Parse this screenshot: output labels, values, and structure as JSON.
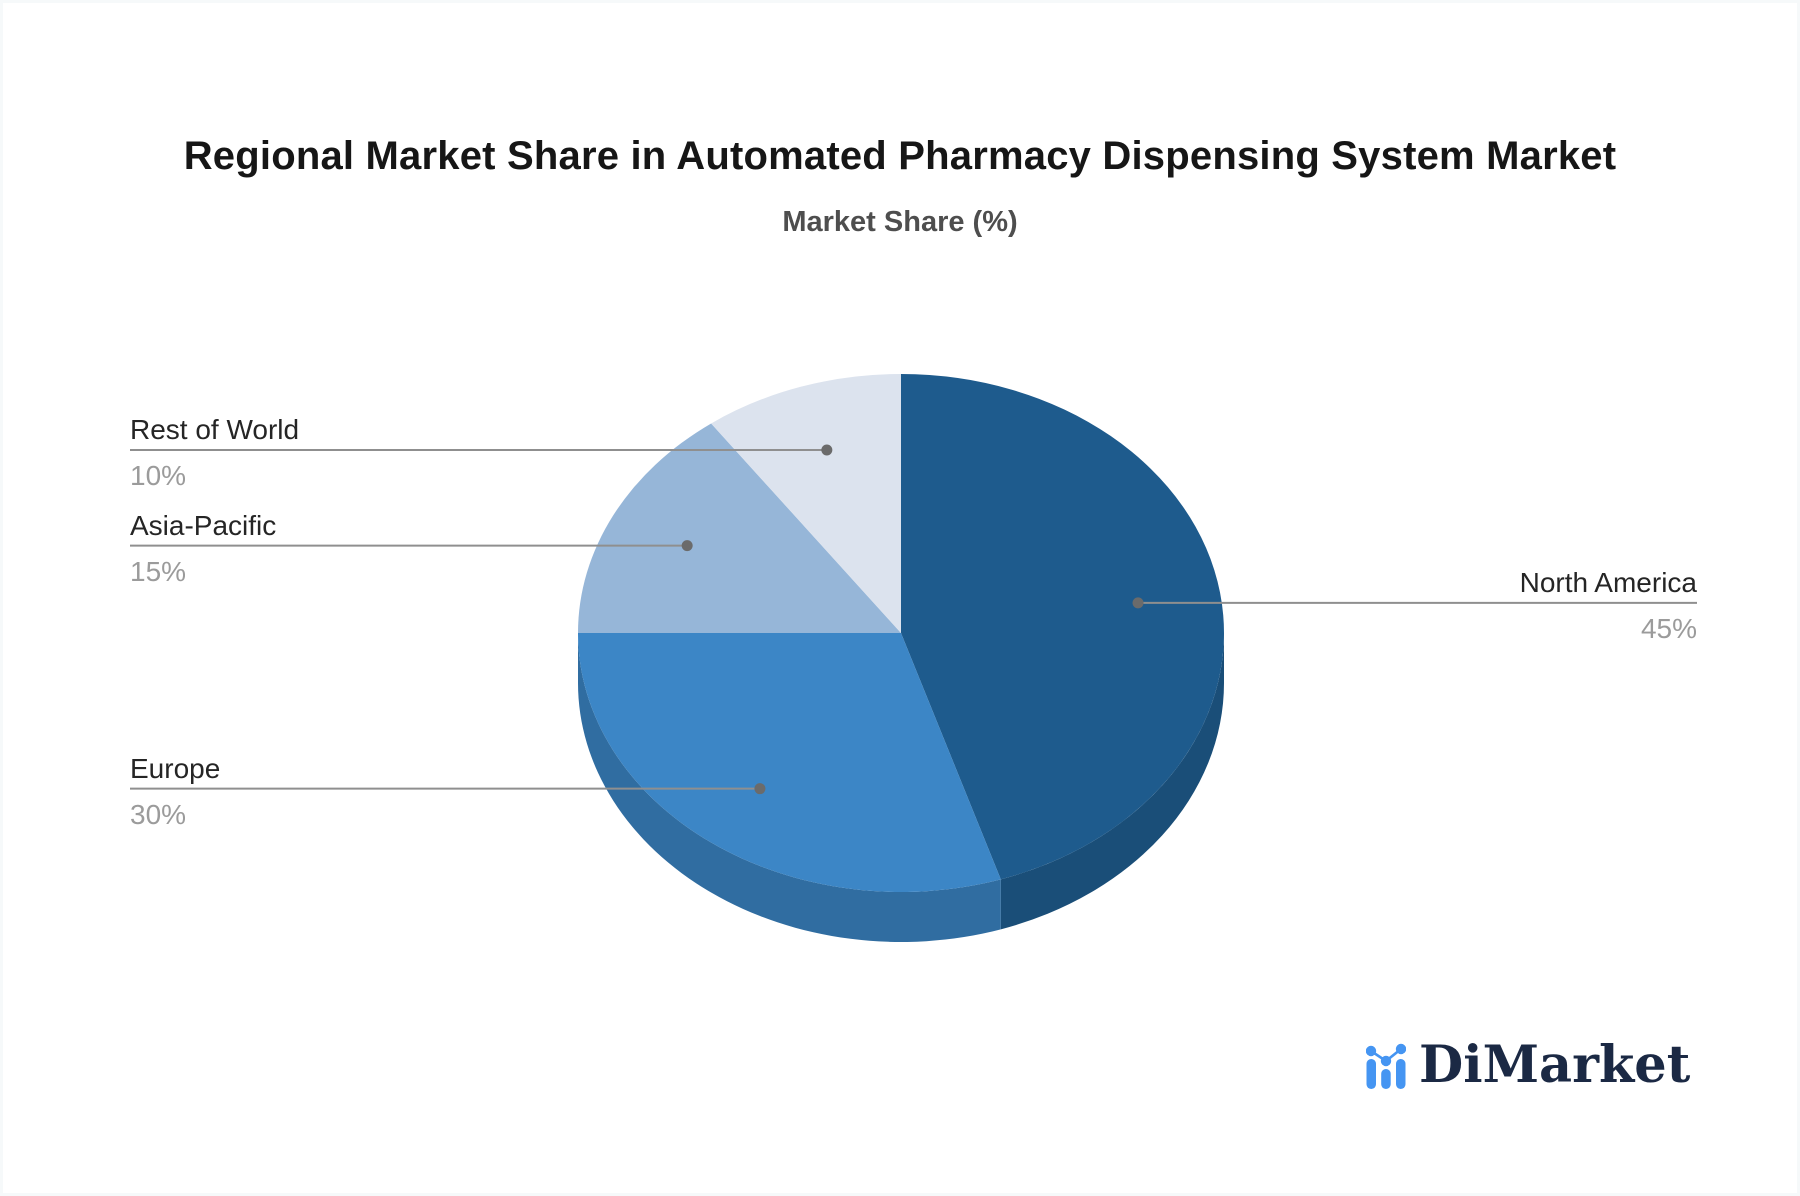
{
  "header": {
    "title": "Regional Market Share in Automated Pharmacy Dispensing System Market",
    "subtitle": "Market Share (%)"
  },
  "chart_data": {
    "type": "pie",
    "title": "Regional Market Share in Automated Pharmacy Dispensing System Market",
    "subtitle": "Market Share (%)",
    "unit": "%",
    "style": "3d-pie",
    "start_angle_deg": 0,
    "direction": "clockwise",
    "legend": "none",
    "slices": [
      {
        "name": "North America",
        "value": 45,
        "pct_label": "45%",
        "color": "#1e5b8d",
        "side_color": "#1a4e78",
        "label_side": "right"
      },
      {
        "name": "Europe",
        "value": 30,
        "pct_label": "30%",
        "color": "#3c86c6",
        "side_color": "#306da1",
        "label_side": "left"
      },
      {
        "name": "Asia-Pacific",
        "value": 15,
        "pct_label": "15%",
        "color": "#96b6d8",
        "side_color": "#7e9cbd",
        "label_side": "left"
      },
      {
        "name": "Rest of World",
        "value": 10,
        "pct_label": "10%",
        "color": "#dce3ee",
        "side_color": "#c2cdde",
        "label_side": "left"
      }
    ],
    "leader_line_color": "#8f8f8f",
    "dot_color": "#6b6b6b"
  },
  "branding": {
    "logo_text": "DiMarket",
    "logo_icon": "bar-line-chart-icon",
    "text_color": "#1b2944",
    "icon_color": "#4595f2"
  }
}
